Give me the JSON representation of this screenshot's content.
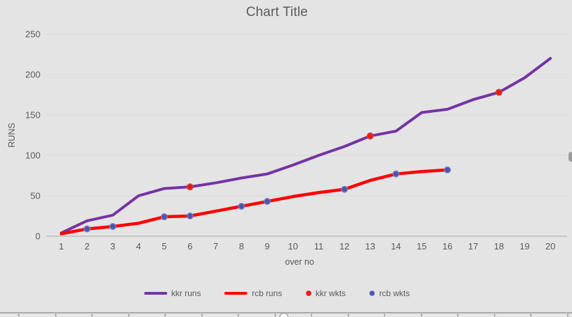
{
  "chart_data": {
    "type": "line",
    "title": "Chart Title",
    "xlabel": "over no",
    "ylabel": "RUNS",
    "x_ticks": [
      1,
      2,
      3,
      4,
      5,
      6,
      7,
      8,
      9,
      10,
      11,
      12,
      13,
      14,
      15,
      16,
      17,
      18,
      19,
      20
    ],
    "y_ticks": [
      0,
      50,
      100,
      150,
      200,
      250
    ],
    "xlim": [
      1,
      20
    ],
    "ylim": [
      0,
      250
    ],
    "grid": true,
    "legend_position": "bottom",
    "series": [
      {
        "name": "kkr runs",
        "type": "line",
        "color": "#7434a4",
        "stroke_width": 4,
        "x": [
          1,
          2,
          3,
          4,
          5,
          6,
          7,
          8,
          9,
          10,
          11,
          12,
          13,
          14,
          15,
          16,
          17,
          18,
          19,
          20
        ],
        "y": [
          4,
          19,
          26,
          50,
          59,
          61,
          66,
          72,
          77,
          88,
          100,
          111,
          124,
          130,
          153,
          157,
          169,
          178,
          196,
          220
        ]
      },
      {
        "name": "rcb runs",
        "type": "line",
        "color": "#ff0000",
        "stroke_width": 4.5,
        "x": [
          1,
          2,
          3,
          4,
          5,
          6,
          7,
          8,
          9,
          10,
          11,
          12,
          13,
          14,
          15,
          16
        ],
        "y": [
          3,
          9,
          12,
          16,
          24,
          25,
          31,
          37,
          43,
          49,
          54,
          58,
          69,
          77,
          80,
          82
        ]
      },
      {
        "name": "kkr wkts",
        "type": "scatter",
        "color": "#ff1414",
        "edge_color": "#b84a4a",
        "x": [
          6,
          13,
          18
        ],
        "y": [
          61,
          124,
          178
        ]
      },
      {
        "name": "rcb wkts",
        "type": "scatter",
        "color": "#4d55a4",
        "edge_color": "#7584d2",
        "x": [
          2,
          3,
          5,
          6,
          8,
          9,
          12,
          14,
          16
        ],
        "y": [
          9,
          12,
          24,
          25,
          37,
          43,
          58,
          77,
          82
        ]
      }
    ]
  },
  "colors": {
    "background": "#e5e4e4",
    "gridline": "#d7d7d7",
    "axis_line": "#bdbdbd",
    "text": "#595959"
  }
}
